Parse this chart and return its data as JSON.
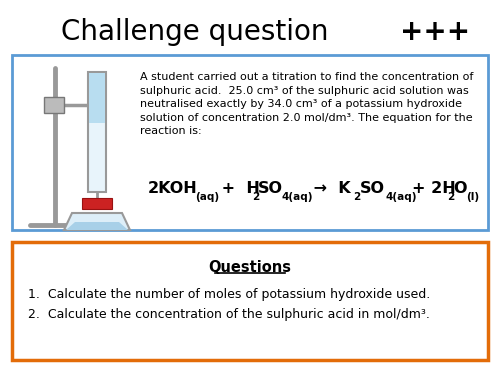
{
  "title": "Challenge question",
  "title_plus": "+++",
  "bg_color": "#ffffff",
  "blue_box_color": "#5b9bd5",
  "orange_box_color": "#e36c09",
  "body_text": "A student carried out a titration to find the concentration of\nsulphuric acid.  25.0 cm³ of the sulphuric acid solution was\nneutralised exactly by 34.0 cm³ of a potassium hydroxide\nsolution of concentration 2.0 mol/dm³. The equation for the\nreaction is:",
  "questions_title": "Questions",
  "q1": "1.  Calculate the number of moles of potassium hydroxide used.",
  "q2": "2.  Calculate the concentration of the sulphuric acid in mol/dm³.",
  "title_fontsize": 20,
  "body_fontsize": 8.0,
  "eq_fontsize": 11.5,
  "eq_sub_fontsize": 7.5,
  "q_fontsize": 9.0,
  "q_title_fontsize": 10.5
}
